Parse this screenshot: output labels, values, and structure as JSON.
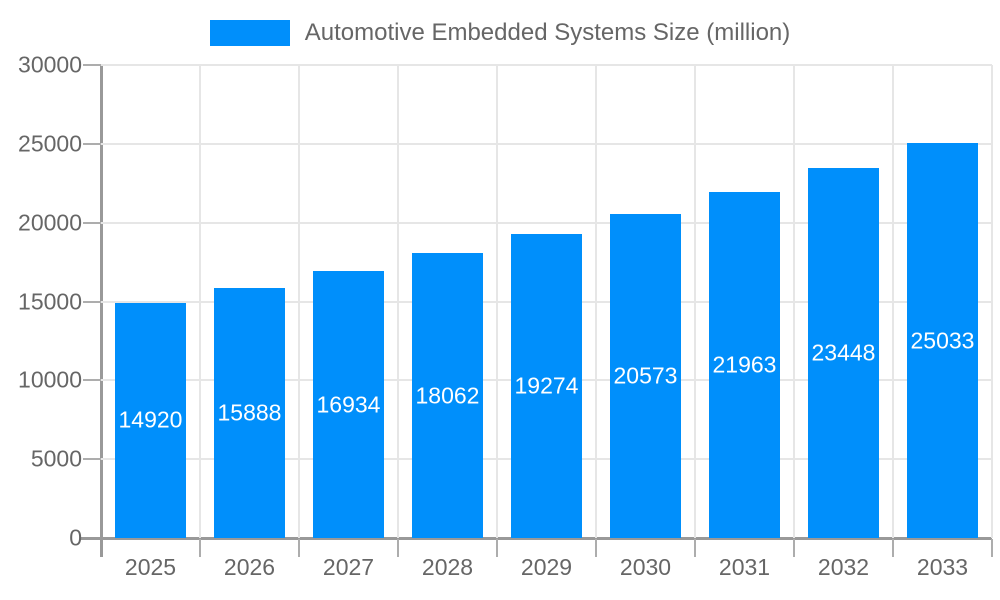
{
  "legend": {
    "label": "Automotive Embedded Systems Size (million)",
    "swatch_color": "#008FFB"
  },
  "chart_data": {
    "type": "bar",
    "title": "Automotive Embedded Systems Size (million)",
    "series_name": "Automotive Embedded Systems Size (million)",
    "categories": [
      "2025",
      "2026",
      "2027",
      "2028",
      "2029",
      "2030",
      "2031",
      "2032",
      "2033"
    ],
    "values": [
      14920,
      15888,
      16934,
      18062,
      19274,
      20573,
      21963,
      23448,
      25033
    ],
    "xlabel": "",
    "ylabel": "",
    "ylim": [
      0,
      30000
    ],
    "yticks": [
      0,
      5000,
      10000,
      15000,
      20000,
      25000,
      30000
    ],
    "grid": "horizontal and vertical gridlines",
    "legend_position": "top-center",
    "bar_color": "#008FFB",
    "bar_label_color": "#ffffff",
    "axis_text_color": "#666666",
    "axis_line_color": "#999999",
    "grid_color": "#e6e6e6",
    "background_color": "#ffffff"
  }
}
